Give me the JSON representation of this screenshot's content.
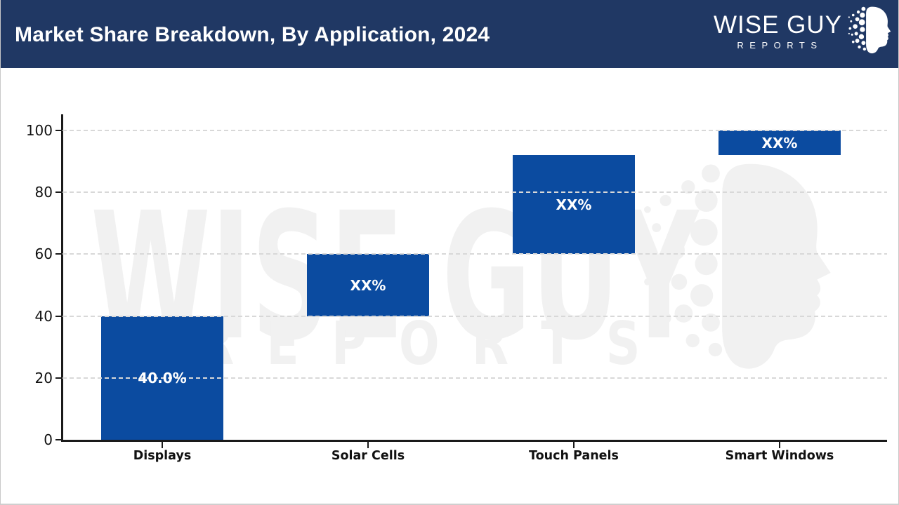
{
  "page": {
    "bg": "#ffffff",
    "border_color": "#c9c9c9"
  },
  "header": {
    "bg": "#203864",
    "title": "Market Share Breakdown, By Application, 2024",
    "title_color": "#ffffff"
  },
  "logo": {
    "wordmark": "WISE GUY",
    "sub": "REPORTS",
    "color": "#ffffff"
  },
  "watermark": {
    "line1": "WISE GUY",
    "line2": "R E P O R T S",
    "color": "#f1f1f1"
  },
  "chart_data": {
    "type": "bar",
    "subtype": "waterfall",
    "title": "Market Share Breakdown, By Application, 2024",
    "categories": [
      "Displays",
      "Solar Cells",
      "Touch Panels",
      "Smart Windows"
    ],
    "segments": [
      {
        "category": "Displays",
        "start": 0,
        "end": 40,
        "label": "40.0%"
      },
      {
        "category": "Solar Cells",
        "start": 40,
        "end": 60,
        "label": "XX%"
      },
      {
        "category": "Touch Panels",
        "start": 60,
        "end": 92,
        "label": "XX%"
      },
      {
        "category": "Smart Windows",
        "start": 92,
        "end": 100,
        "label": "XX%"
      }
    ],
    "bar_color": "#0b4ba0",
    "bar_label_color": "#ffffff",
    "xlabel": "",
    "ylabel": "",
    "ylim": [
      0,
      105
    ],
    "yticks": [
      0,
      20,
      40,
      60,
      80,
      100
    ],
    "grid": {
      "axis": "y",
      "style": "dashed",
      "color": "#d8d8d8",
      "drawn_above_bars": true
    },
    "axis_color": "#1a1a1a",
    "legend": null
  }
}
